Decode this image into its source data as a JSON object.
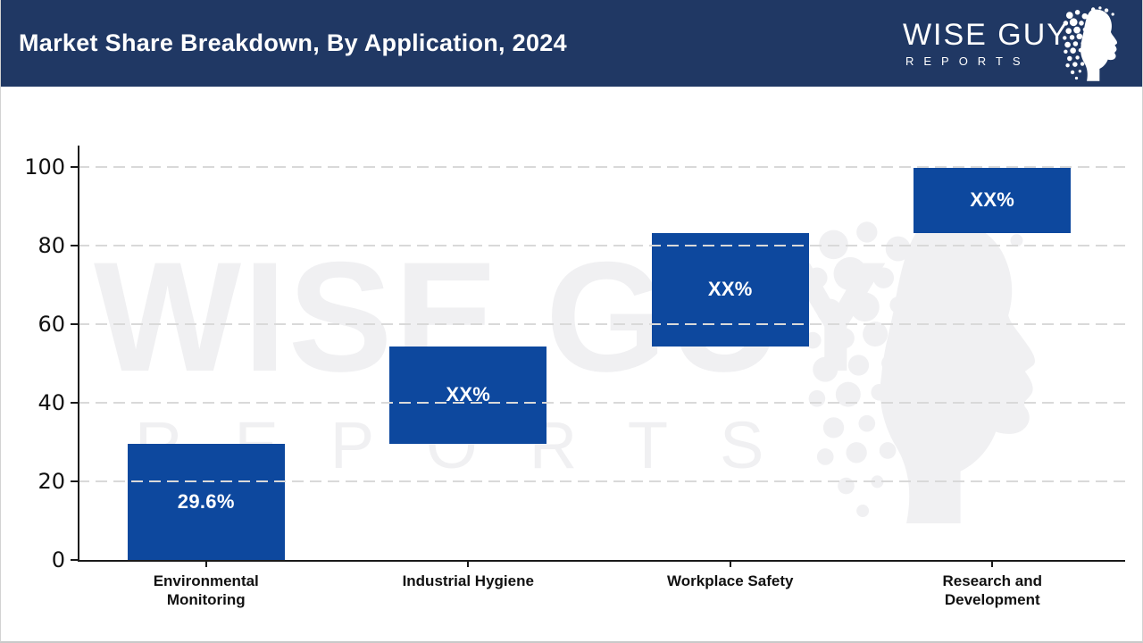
{
  "header": {
    "title": "Market Share Breakdown, By Application, 2024",
    "bg_color": "#203864",
    "logo": {
      "wordmark": "WISE GUY",
      "subtext": "REPORTS"
    }
  },
  "watermark": {
    "wordmark": "WISE GUY",
    "subtext": "REPORTS",
    "color": "#f0f0f2"
  },
  "icons": {
    "logo_head": "dotted-profile-head"
  },
  "chart_data": {
    "type": "bar",
    "variant": "waterfall-floating-bars",
    "title": "Market Share Breakdown, By Application, 2024",
    "categories": [
      "Environmental Monitoring",
      "Industrial Hygiene",
      "Workplace Safety",
      "Research and Development"
    ],
    "bars": [
      {
        "tick_label": "Environmental\nMonitoring",
        "start": 0,
        "end": 29.6,
        "label": "29.6%"
      },
      {
        "tick_label": "Industrial Hygiene",
        "start": 29.6,
        "end": 54.4,
        "label": "XX%"
      },
      {
        "tick_label": "Workplace Safety",
        "start": 54.4,
        "end": 83.2,
        "label": "XX%"
      },
      {
        "tick_label": "Research and\nDevelopment",
        "start": 83.2,
        "end": 99.8,
        "label": "XX%"
      }
    ],
    "bar_color": "#0d489e",
    "bar_label_color": "#ffffff",
    "yticks": [
      0,
      20,
      40,
      60,
      80,
      100
    ],
    "ylim": [
      0,
      106
    ],
    "xlabel": "",
    "ylabel": "",
    "grid": "horizontal-dashed",
    "grid_color": "#d9d9d9",
    "axis_color": "#1a1a1a",
    "legend": "none"
  }
}
